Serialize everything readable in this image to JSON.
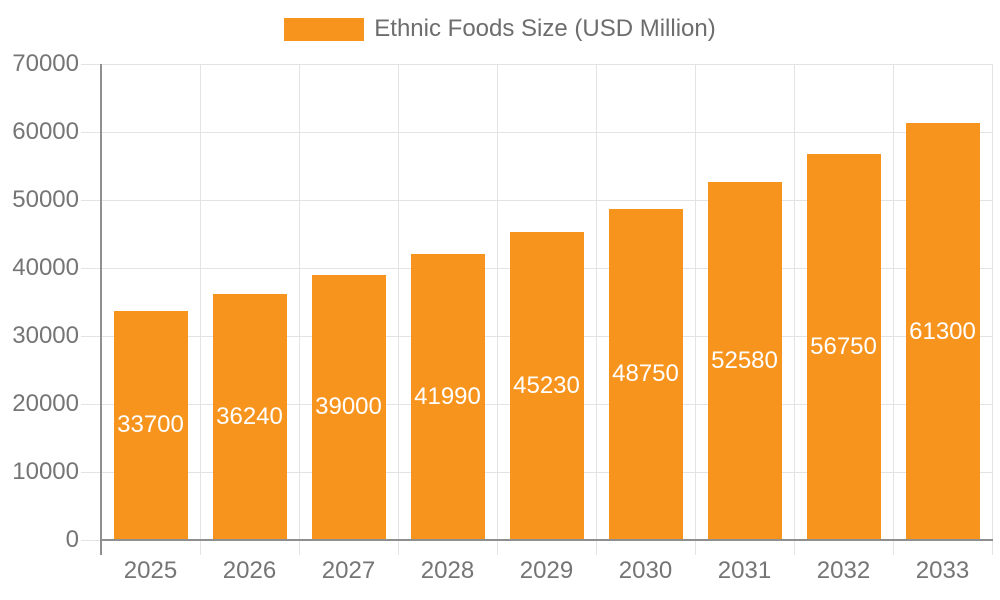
{
  "legend": {
    "label": "Ethnic Foods Size (USD Million)"
  },
  "chart_data": {
    "type": "bar",
    "title": "Ethnic Foods Size (USD Million)",
    "series_name": "Ethnic Foods Size (USD Million)",
    "categories": [
      "2025",
      "2026",
      "2027",
      "2028",
      "2029",
      "2030",
      "2031",
      "2032",
      "2033"
    ],
    "values": [
      33700,
      36240,
      39000,
      41990,
      45230,
      48750,
      52580,
      56750,
      61300
    ],
    "xlabel": "",
    "ylabel": "",
    "ylim": [
      0,
      70000
    ],
    "yticks": [
      0,
      10000,
      20000,
      30000,
      40000,
      50000,
      60000,
      70000
    ],
    "grid": true,
    "legend_position": "top-center",
    "bar_label_position": "inside-middle"
  },
  "colors": {
    "bar": "#F7941E",
    "bar_label": "#FFFFFF",
    "axis_text": "#757575",
    "legend_text": "#6D6D6D",
    "grid_line": "#E3E3E3",
    "axis_line": "#8F8F8F",
    "background": "#FFFFFF"
  }
}
